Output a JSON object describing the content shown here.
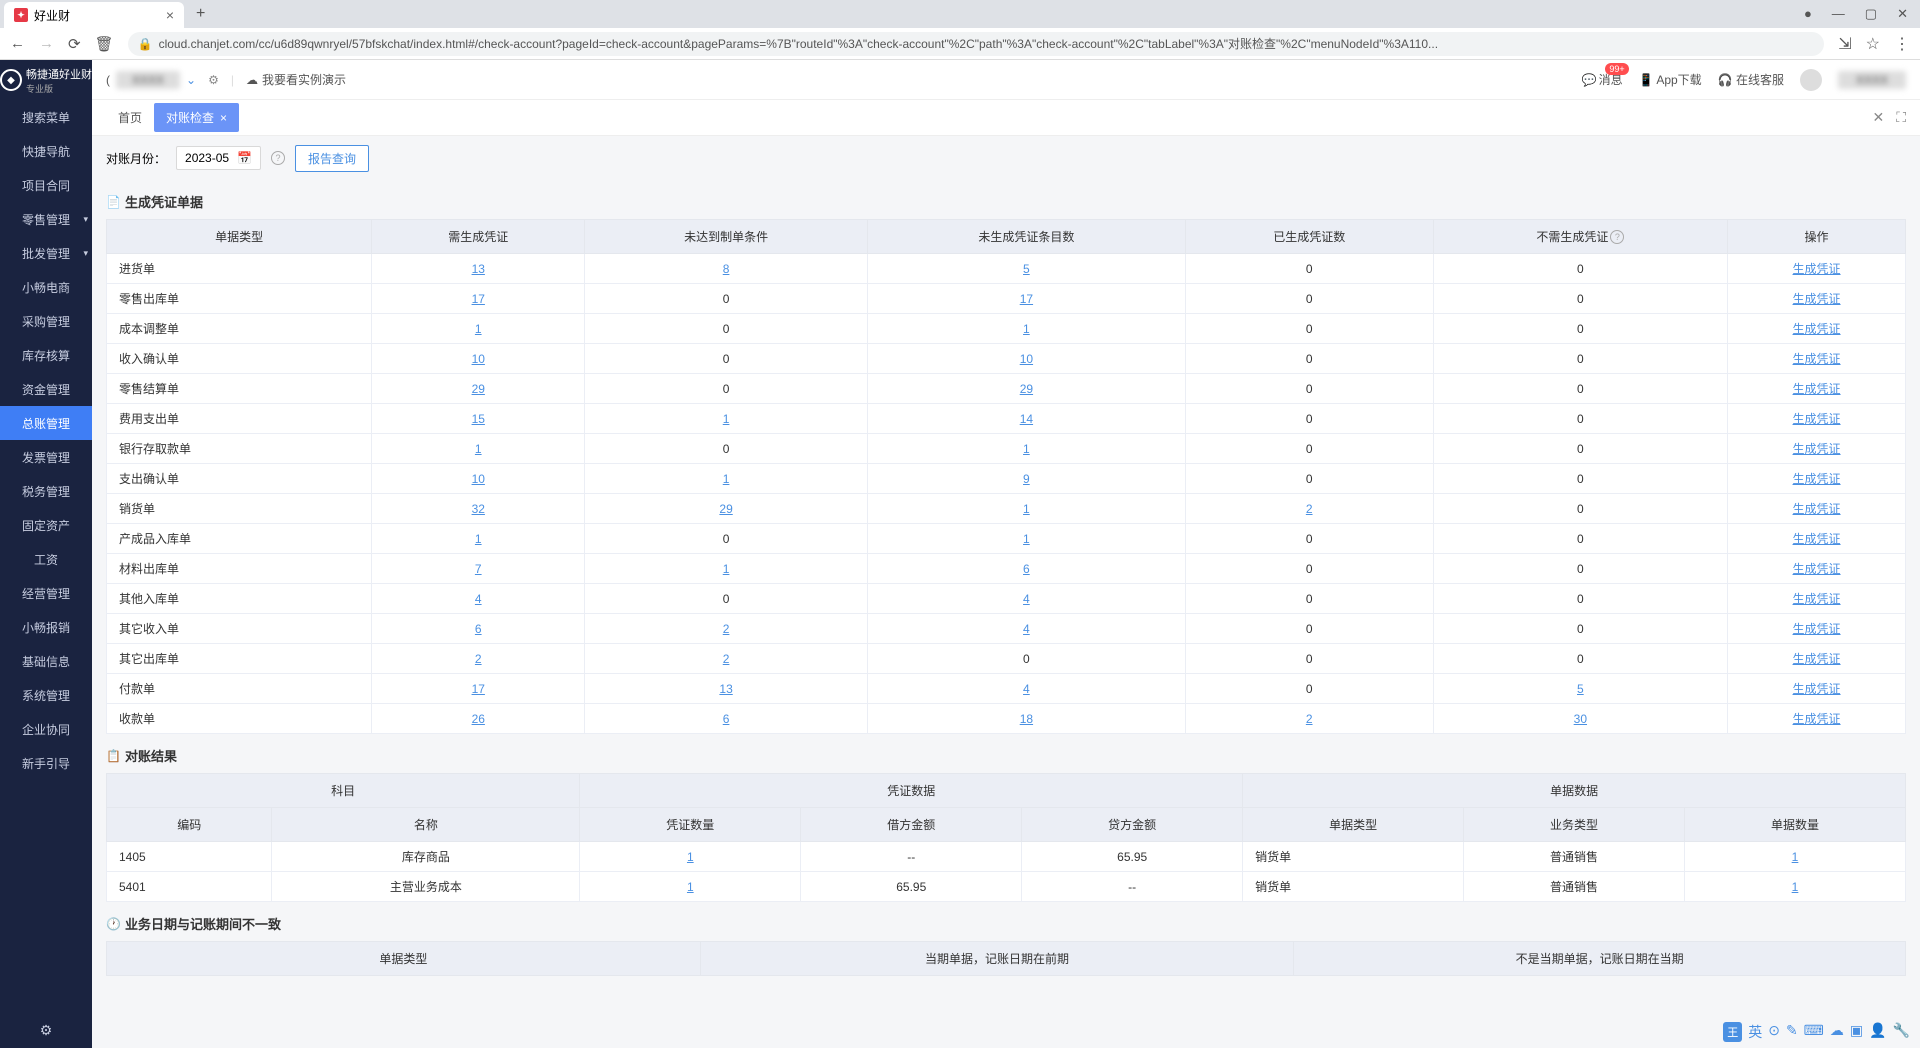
{
  "browser": {
    "tab_title": "好业财",
    "url": "cloud.chanjet.com/cc/u6d89qwnryel/57bfskchat/index.html#/check-account?pageId=check-account&pageParams=%7B\"routeId\"%3A\"check-account\"%2C\"path\"%3A\"check-account\"%2C\"tabLabel\"%3A\"对账检查\"%2C\"menuNodeId\"%3A110..."
  },
  "app": {
    "logo_text": "畅捷通好业财",
    "logo_sub": "专业版",
    "sidebar": [
      {
        "label": "搜索菜单",
        "chev": false
      },
      {
        "label": "快捷导航",
        "chev": false
      },
      {
        "label": "项目合同",
        "chev": false
      },
      {
        "label": "零售管理",
        "chev": true
      },
      {
        "label": "批发管理",
        "chev": true
      },
      {
        "label": "小畅电商",
        "chev": false
      },
      {
        "label": "采购管理",
        "chev": false
      },
      {
        "label": "库存核算",
        "chev": false
      },
      {
        "label": "资金管理",
        "chev": false
      },
      {
        "label": "总账管理",
        "chev": false,
        "active": true
      },
      {
        "label": "发票管理",
        "chev": false
      },
      {
        "label": "税务管理",
        "chev": false
      },
      {
        "label": "固定资产",
        "chev": false
      },
      {
        "label": "工资",
        "chev": false
      },
      {
        "label": "经营管理",
        "chev": false
      },
      {
        "label": "小畅报销",
        "chev": false
      },
      {
        "label": "基础信息",
        "chev": false
      },
      {
        "label": "系统管理",
        "chev": false
      },
      {
        "label": "企业协同",
        "chev": false
      },
      {
        "label": "新手引导",
        "chev": false
      }
    ],
    "topbar": {
      "demo": "我要看实例演示",
      "msg": "消息",
      "badge": "99+",
      "app_dl": "App下载",
      "service": "在线客服"
    },
    "tabs": {
      "home": "首页",
      "active": "对账检查"
    },
    "filter": {
      "month_label": "对账月份：",
      "month_value": "2023-05",
      "report_btn": "报告查询"
    },
    "section1_title": "生成凭证单据",
    "table1": {
      "headers": [
        "单据类型",
        "需生成凭证",
        "未达到制单条件",
        "未生成凭证条目数",
        "已生成凭证数",
        "不需生成凭证",
        "操作"
      ],
      "header_help_col": 5,
      "action_label": "生成凭证",
      "rows": [
        {
          "t": "进货单",
          "a": "13",
          "b": "8",
          "c": "5",
          "d": "0",
          "e": "0"
        },
        {
          "t": "零售出库单",
          "a": "17",
          "b": "0",
          "c": "17",
          "d": "0",
          "e": "0"
        },
        {
          "t": "成本调整单",
          "a": "1",
          "b": "0",
          "c": "1",
          "d": "0",
          "e": "0"
        },
        {
          "t": "收入确认单",
          "a": "10",
          "b": "0",
          "c": "10",
          "d": "0",
          "e": "0"
        },
        {
          "t": "零售结算单",
          "a": "29",
          "b": "0",
          "c": "29",
          "d": "0",
          "e": "0"
        },
        {
          "t": "费用支出单",
          "a": "15",
          "b": "1",
          "c": "14",
          "d": "0",
          "e": "0"
        },
        {
          "t": "银行存取款单",
          "a": "1",
          "b": "0",
          "c": "1",
          "d": "0",
          "e": "0"
        },
        {
          "t": "支出确认单",
          "a": "10",
          "b": "1",
          "c": "9",
          "d": "0",
          "e": "0"
        },
        {
          "t": "销货单",
          "a": "32",
          "b": "29",
          "c": "1",
          "d": "2",
          "e": "0"
        },
        {
          "t": "产成品入库单",
          "a": "1",
          "b": "0",
          "c": "1",
          "d": "0",
          "e": "0"
        },
        {
          "t": "材料出库单",
          "a": "7",
          "b": "1",
          "c": "6",
          "d": "0",
          "e": "0"
        },
        {
          "t": "其他入库单",
          "a": "4",
          "b": "0",
          "c": "4",
          "d": "0",
          "e": "0"
        },
        {
          "t": "其它收入单",
          "a": "6",
          "b": "2",
          "c": "4",
          "d": "0",
          "e": "0"
        },
        {
          "t": "其它出库单",
          "a": "2",
          "b": "2",
          "c": "0",
          "d": "0",
          "e": "0"
        },
        {
          "t": "付款单",
          "a": "17",
          "b": "13",
          "c": "4",
          "d": "0",
          "e": "5"
        },
        {
          "t": "收款单",
          "a": "26",
          "b": "6",
          "c": "18",
          "d": "2",
          "e": "30"
        }
      ]
    },
    "section2_title": "对账结果",
    "table2": {
      "h_account": "科目",
      "h_voucher": "凭证数据",
      "h_doc": "单据数据",
      "h_code": "编码",
      "h_name": "名称",
      "h_vcount": "凭证数量",
      "h_debit": "借方金额",
      "h_credit": "贷方金额",
      "h_doctype": "单据类型",
      "h_biztype": "业务类型",
      "h_doccount": "单据数量",
      "rows": [
        {
          "code": "1405",
          "name": "库存商品",
          "vc": "1",
          "debit": "--",
          "credit": "65.95",
          "dt": "销货单",
          "bt": "普通销售",
          "dc": "1"
        },
        {
          "code": "5401",
          "name": "主营业务成本",
          "vc": "1",
          "debit": "65.95",
          "credit": "--",
          "dt": "销货单",
          "bt": "普通销售",
          "dc": "1"
        }
      ]
    },
    "section3_title": "业务日期与记账期间不一致",
    "table3": {
      "h1": "单据类型",
      "h2": "当期单据，记账日期在前期",
      "h3": "不是当期单据，记账日期在当期"
    }
  }
}
